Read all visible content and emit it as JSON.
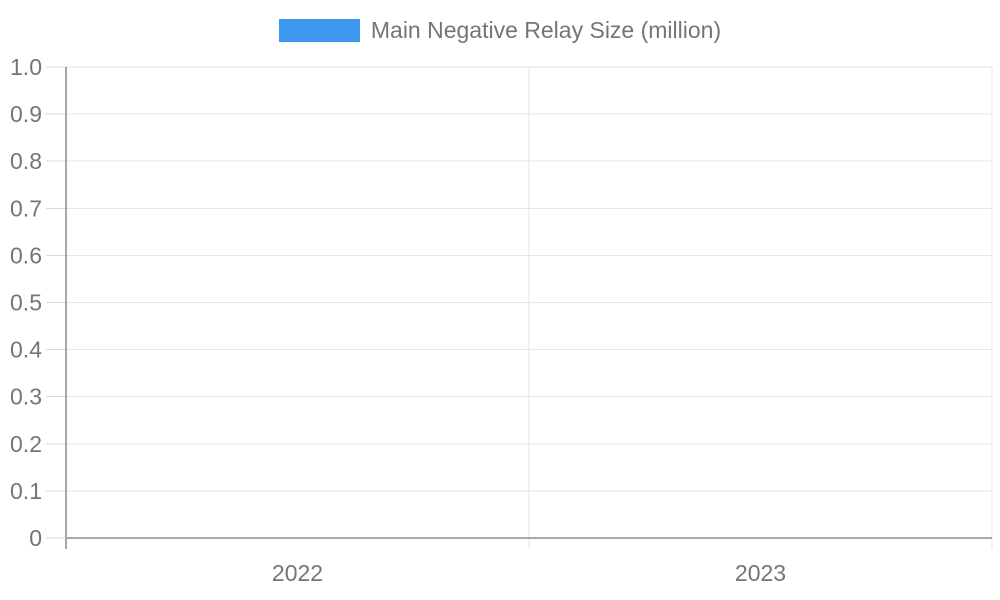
{
  "legend": {
    "swatch_color": "#3d9af0",
    "label": "Main Negative Relay Size (million)"
  },
  "chart_data": {
    "type": "bar",
    "title": "Main Negative Relay Size (million)",
    "categories": [
      "2022",
      "2023"
    ],
    "series": [
      {
        "name": "Main Negative Relay Size (million)",
        "color": "#3d9af0",
        "values": [
          null,
          null
        ]
      }
    ],
    "xlabel": "",
    "ylabel": "",
    "ylim": [
      0,
      1
    ],
    "y_ticks": [
      {
        "value": 0,
        "label": "0"
      },
      {
        "value": 0.1,
        "label": "0.1"
      },
      {
        "value": 0.2,
        "label": "0.2"
      },
      {
        "value": 0.3,
        "label": "0.3"
      },
      {
        "value": 0.4,
        "label": "0.4"
      },
      {
        "value": 0.5,
        "label": "0.5"
      },
      {
        "value": 0.6,
        "label": "0.6"
      },
      {
        "value": 0.7,
        "label": "0.7"
      },
      {
        "value": 0.8,
        "label": "0.8"
      },
      {
        "value": 0.9,
        "label": "0.9"
      },
      {
        "value": 1.0,
        "label": "1.0"
      }
    ],
    "grid": true,
    "legend_position": "top-center",
    "colors": {
      "text": "#757575",
      "gridline": "#e6e6e6",
      "tick": "#d9d9d9",
      "y_axis_line": "#a6a6a6",
      "x_axis_line": "#a9a9a9"
    }
  }
}
